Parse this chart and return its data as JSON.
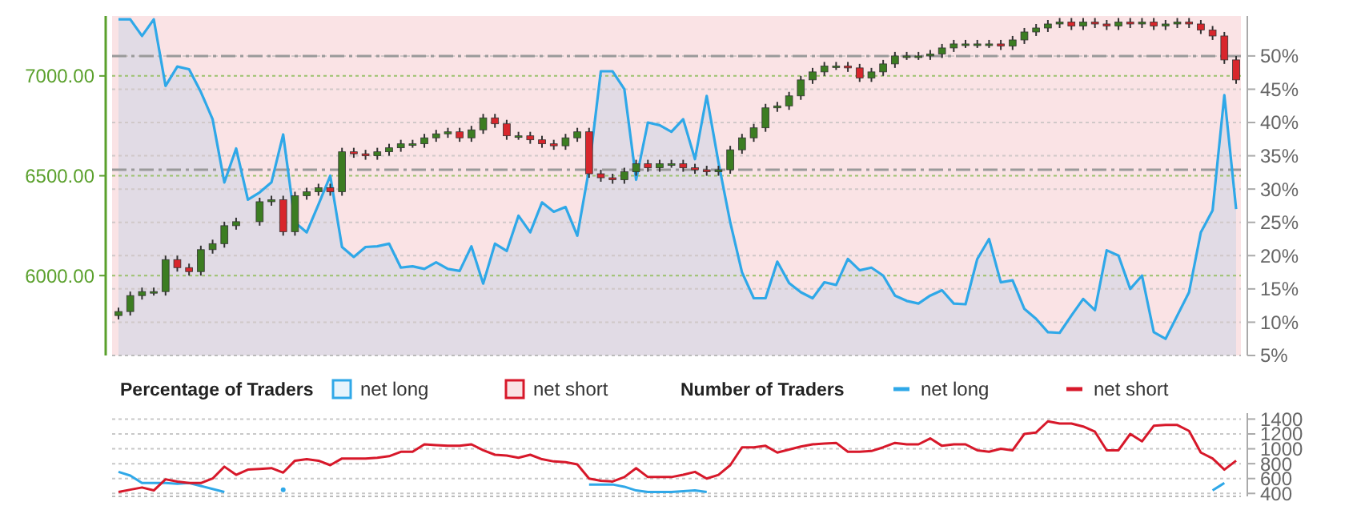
{
  "chart_data": [
    {
      "type": "candlestick",
      "categories": [
        null,
        null,
        null,
        null,
        null,
        null,
        null,
        null,
        null,
        null,
        null,
        null,
        null,
        null,
        null,
        null,
        null,
        null,
        null,
        null,
        null,
        null,
        null,
        null,
        null,
        null,
        null,
        null,
        null,
        null,
        null,
        null,
        null,
        null,
        null,
        null,
        null,
        null,
        null,
        null,
        null,
        null,
        null,
        null,
        null,
        null,
        null,
        null,
        null,
        null,
        null,
        null,
        null,
        null,
        null,
        null,
        null,
        null,
        null,
        null,
        null,
        null,
        null,
        null,
        null,
        null,
        null,
        null,
        null,
        null,
        null,
        null,
        null,
        null,
        null,
        null,
        null,
        null,
        null,
        null,
        null,
        null,
        null,
        null,
        null,
        null,
        null,
        null,
        null,
        null,
        null,
        null,
        null,
        null,
        null,
        null
      ],
      "ohlc": [
        [
          5800,
          5840,
          5780,
          5820
        ],
        [
          5820,
          5920,
          5800,
          5900
        ],
        [
          5900,
          5940,
          5880,
          5920
        ],
        [
          5920,
          5940,
          5900,
          5920
        ],
        [
          5920,
          6100,
          5900,
          6080
        ],
        [
          6080,
          6100,
          6020,
          6040
        ],
        [
          6040,
          6060,
          6000,
          6020
        ],
        [
          6020,
          6150,
          6000,
          6130
        ],
        [
          6130,
          6180,
          6110,
          6160
        ],
        [
          6160,
          6270,
          6140,
          6250
        ],
        [
          6250,
          6290,
          6230,
          6270
        ],
        null,
        [
          6270,
          6390,
          6250,
          6370
        ],
        [
          6370,
          6400,
          6350,
          6380
        ],
        [
          6380,
          6400,
          6200,
          6220
        ],
        [
          6220,
          6420,
          6200,
          6400
        ],
        [
          6400,
          6440,
          6380,
          6420
        ],
        [
          6420,
          6460,
          6400,
          6440
        ],
        [
          6440,
          6460,
          6400,
          6420
        ],
        [
          6420,
          6640,
          6400,
          6620
        ],
        [
          6620,
          6640,
          6590,
          6610
        ],
        [
          6610,
          6630,
          6580,
          6600
        ],
        [
          6600,
          6640,
          6580,
          6620
        ],
        [
          6620,
          6660,
          6600,
          6640
        ],
        [
          6640,
          6680,
          6620,
          6660
        ],
        [
          6660,
          6680,
          6640,
          6660
        ],
        [
          6660,
          6710,
          6640,
          6690
        ],
        [
          6690,
          6730,
          6670,
          6710
        ],
        [
          6710,
          6740,
          6690,
          6720
        ],
        [
          6720,
          6740,
          6670,
          6690
        ],
        [
          6690,
          6750,
          6670,
          6730
        ],
        [
          6730,
          6810,
          6710,
          6790
        ],
        [
          6790,
          6810,
          6740,
          6760
        ],
        [
          6760,
          6780,
          6680,
          6700
        ],
        [
          6700,
          6720,
          6680,
          6700
        ],
        [
          6700,
          6720,
          6660,
          6680
        ],
        [
          6680,
          6700,
          6640,
          6660
        ],
        [
          6660,
          6680,
          6630,
          6650
        ],
        [
          6650,
          6710,
          6630,
          6690
        ],
        [
          6690,
          6740,
          6670,
          6720
        ],
        [
          6720,
          6740,
          6490,
          6510
        ],
        [
          6510,
          6530,
          6470,
          6490
        ],
        [
          6490,
          6510,
          6460,
          6480
        ],
        [
          6480,
          6540,
          6460,
          6520
        ],
        [
          6520,
          6580,
          6500,
          6560
        ],
        [
          6560,
          6580,
          6520,
          6540
        ],
        [
          6540,
          6580,
          6520,
          6560
        ],
        [
          6560,
          6580,
          6540,
          6560
        ],
        [
          6560,
          6580,
          6520,
          6540
        ],
        [
          6540,
          6560,
          6510,
          6530
        ],
        [
          6530,
          6550,
          6500,
          6520
        ],
        [
          6520,
          6550,
          6500,
          6530
        ],
        [
          6530,
          6650,
          6510,
          6630
        ],
        [
          6630,
          6710,
          6610,
          6690
        ],
        [
          6690,
          6760,
          6670,
          6740
        ],
        [
          6740,
          6860,
          6720,
          6840
        ],
        [
          6840,
          6870,
          6820,
          6850
        ],
        [
          6850,
          6920,
          6830,
          6900
        ],
        [
          6900,
          7000,
          6880,
          6980
        ],
        [
          6980,
          7040,
          6960,
          7020
        ],
        [
          7020,
          7070,
          7000,
          7050
        ],
        [
          7050,
          7070,
          7030,
          7050
        ],
        [
          7050,
          7070,
          7020,
          7040
        ],
        [
          7040,
          7060,
          6970,
          6990
        ],
        [
          6990,
          7040,
          6970,
          7020
        ],
        [
          7020,
          7080,
          7000,
          7060
        ],
        [
          7060,
          7120,
          7040,
          7100
        ],
        [
          7100,
          7120,
          7080,
          7100
        ],
        [
          7100,
          7120,
          7080,
          7100
        ],
        [
          7100,
          7130,
          7080,
          7110
        ],
        [
          7110,
          7160,
          7090,
          7140
        ],
        [
          7140,
          7180,
          7120,
          7160
        ],
        [
          7160,
          7180,
          7140,
          7160
        ],
        [
          7160,
          7180,
          7140,
          7160
        ],
        [
          7160,
          7180,
          7140,
          7160
        ],
        [
          7160,
          7180,
          7130,
          7150
        ],
        [
          7150,
          7200,
          7130,
          7180
        ],
        [
          7180,
          7240,
          7160,
          7220
        ],
        [
          7220,
          7260,
          7200,
          7240
        ],
        [
          7240,
          7280,
          7220,
          7260
        ],
        [
          7260,
          7290,
          7240,
          7270
        ],
        [
          7270,
          7290,
          7230,
          7250
        ],
        [
          7250,
          7290,
          7230,
          7270
        ],
        [
          7270,
          7290,
          7240,
          7260
        ],
        [
          7260,
          7280,
          7230,
          7250
        ],
        [
          7250,
          7290,
          7230,
          7270
        ],
        [
          7270,
          7290,
          7240,
          7260
        ],
        [
          7260,
          7290,
          7240,
          7270
        ],
        [
          7270,
          7290,
          7230,
          7250
        ],
        [
          7250,
          7280,
          7230,
          7260
        ],
        [
          7260,
          7290,
          7240,
          7270
        ],
        [
          7270,
          7290,
          7240,
          7260
        ],
        [
          7260,
          7280,
          7210,
          7230
        ],
        [
          7230,
          7250,
          7180,
          7200
        ],
        [
          7200,
          7220,
          7060,
          7080
        ],
        [
          7080,
          7100,
          6960,
          6980
        ]
      ],
      "series": [
        {
          "name": "net long",
          "type": "area",
          "axis": "y2",
          "color": "#2fa8e8",
          "values": [
            55.5,
            55.5,
            53,
            55.5,
            45.5,
            48.4,
            48,
            44.6,
            40.5,
            31,
            36.1,
            28.4,
            29.5,
            31,
            38.2,
            25,
            23.5,
            27.7,
            32,
            21.3,
            19.8,
            21.3,
            21.4,
            21.8,
            18.2,
            18.4,
            18,
            19,
            18,
            17.7,
            21.4,
            15.8,
            21.8,
            20.7,
            26,
            23.5,
            28,
            26.6,
            27.3,
            23,
            33,
            47.7,
            47.7,
            45,
            31.4,
            40,
            39.6,
            38.6,
            40.5,
            34.5,
            44,
            34,
            25,
            17.5,
            13.6,
            13.6,
            19.1,
            15.9,
            14.5,
            13.6,
            16,
            15.6,
            19.5,
            17.8,
            18.2,
            17,
            14,
            13.2,
            12.8,
            14,
            14.8,
            12.8,
            12.7,
            19.5,
            22.5,
            16,
            16.3,
            12,
            10.5,
            8.5,
            8.4,
            11,
            13.5,
            11.8,
            20.8,
            20,
            15,
            17,
            8.5,
            7.5,
            11,
            14.5,
            23.5,
            26.8,
            44.1,
            27
          ]
        },
        {
          "name": "net short",
          "type": "area",
          "axis": "y2",
          "color": "#d7182a",
          "values": [
            null,
            null,
            null,
            null,
            null,
            null,
            null,
            null,
            null,
            null,
            null,
            null,
            null,
            null,
            null,
            null,
            null,
            null,
            null,
            null,
            null,
            null,
            null,
            null,
            null,
            null,
            null,
            null,
            null,
            null,
            null,
            null,
            null,
            null,
            null,
            null,
            null,
            null,
            null,
            null,
            null,
            null,
            null,
            null,
            null,
            null,
            null,
            null,
            null,
            null,
            null,
            null,
            null,
            null,
            null,
            null,
            null,
            null,
            null,
            null,
            null,
            null,
            null,
            null,
            null,
            null,
            null,
            null,
            null,
            null,
            null,
            null,
            null,
            null,
            null,
            null,
            null,
            null,
            null,
            null,
            null,
            null,
            null,
            null,
            null,
            null,
            null,
            null,
            null,
            null,
            null,
            null,
            null,
            null,
            null,
            null
          ]
        }
      ],
      "ylim": [
        5600,
        7300
      ],
      "yticks": [
        {
          "value": 6000,
          "label": "6000.00"
        },
        {
          "value": 6500,
          "label": "6500.00"
        },
        {
          "value": 7000,
          "label": "7000.00"
        }
      ],
      "y2lim": [
        5,
        56
      ],
      "y2ticks": [
        {
          "value": 5,
          "label": "5%"
        },
        {
          "value": 10,
          "label": "10%"
        },
        {
          "value": 15,
          "label": "15%"
        },
        {
          "value": 20,
          "label": "20%"
        },
        {
          "value": 25,
          "label": "25%"
        },
        {
          "value": 30,
          "label": "30%"
        },
        {
          "value": 35,
          "label": "35%"
        },
        {
          "value": 40,
          "label": "40%"
        },
        {
          "value": 45,
          "label": "45%"
        },
        {
          "value": 50,
          "label": "50%"
        }
      ],
      "ref_lines": [
        {
          "axis": "y",
          "value": 7100,
          "color": "#9a9a9a",
          "line_style": "dashed"
        },
        {
          "axis": "y",
          "value": 6530,
          "color": "#9a9a9a",
          "line_style": "dashed"
        }
      ],
      "grid": true,
      "legend": "bottom",
      "legend_title": "Percentage of Traders"
    },
    {
      "type": "line",
      "categories": [
        null,
        null,
        null,
        null,
        null,
        null,
        null,
        null,
        null,
        null,
        null,
        null,
        null,
        null,
        null,
        null,
        null,
        null,
        null,
        null,
        null,
        null,
        null,
        null,
        null,
        null,
        null,
        null,
        null,
        null,
        null,
        null,
        null,
        null,
        null,
        null,
        null,
        null,
        null,
        null,
        null,
        null,
        null,
        null,
        null,
        null,
        null,
        null,
        null,
        null,
        null,
        null,
        null,
        null,
        null,
        null,
        null,
        null,
        null,
        null,
        null,
        null,
        null,
        null,
        null,
        null,
        null,
        null,
        null,
        null,
        null,
        null,
        null,
        null,
        null,
        null,
        null,
        null,
        null,
        null,
        null,
        null,
        null,
        null,
        null,
        null,
        null,
        null,
        null,
        null,
        null,
        null,
        null,
        null,
        null,
        null
      ],
      "series": [
        {
          "name": "net long",
          "color": "#2fa8e8",
          "values": [
            690,
            640,
            540,
            540,
            540,
            530,
            540,
            500,
            460,
            420,
            null,
            null,
            null,
            null,
            450,
            null,
            null,
            null,
            null,
            null,
            null,
            null,
            null,
            null,
            null,
            null,
            null,
            null,
            null,
            null,
            null,
            null,
            null,
            null,
            null,
            null,
            null,
            null,
            null,
            null,
            520,
            520,
            520,
            490,
            440,
            420,
            420,
            420,
            430,
            440,
            420,
            null,
            null,
            null,
            null,
            null,
            null,
            null,
            null,
            null,
            null,
            null,
            null,
            null,
            null,
            null,
            null,
            null,
            null,
            null,
            null,
            null,
            null,
            null,
            null,
            null,
            null,
            null,
            null,
            null,
            null,
            null,
            null,
            null,
            null,
            null,
            null,
            null,
            null,
            null,
            null,
            null,
            null,
            440,
            540,
            null
          ]
        },
        {
          "name": "net short",
          "color": "#d7182a",
          "values": [
            420,
            450,
            480,
            440,
            590,
            560,
            540,
            540,
            600,
            760,
            650,
            720,
            730,
            740,
            680,
            840,
            860,
            840,
            780,
            870,
            870,
            870,
            880,
            900,
            960,
            960,
            1060,
            1050,
            1040,
            1040,
            1060,
            980,
            920,
            910,
            880,
            920,
            860,
            830,
            820,
            790,
            600,
            570,
            560,
            620,
            740,
            620,
            620,
            620,
            650,
            690,
            600,
            650,
            780,
            1020,
            1020,
            1040,
            950,
            990,
            1030,
            1060,
            1070,
            1080,
            960,
            960,
            970,
            1020,
            1080,
            1060,
            1060,
            1140,
            1040,
            1060,
            1060,
            980,
            960,
            1000,
            980,
            1200,
            1220,
            1370,
            1340,
            1340,
            1300,
            1230,
            980,
            980,
            1200,
            1100,
            1310,
            1320,
            1320,
            1240,
            950,
            870,
            720,
            840
          ]
        }
      ],
      "ylim": [
        360,
        1480
      ],
      "yticks": [
        400,
        600,
        800,
        1000,
        1200,
        1400
      ],
      "grid": "y",
      "legend": "top",
      "legend_title": "Number of Traders"
    }
  ]
}
